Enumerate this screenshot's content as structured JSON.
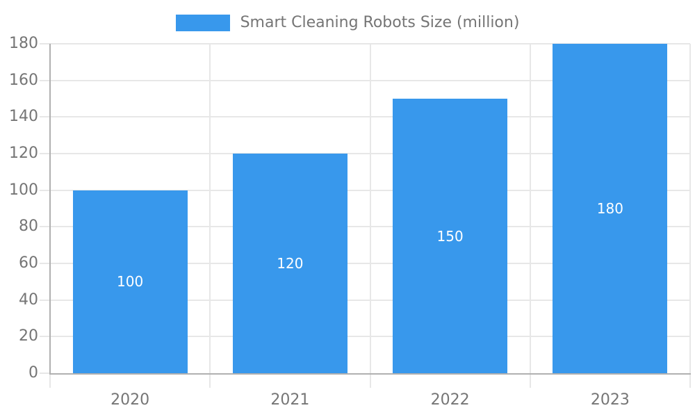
{
  "chart_data": {
    "type": "bar",
    "legend": "Smart Cleaning Robots Size (million)",
    "legend_position": "top-center",
    "categories": [
      "2020",
      "2021",
      "2022",
      "2023"
    ],
    "series": [
      {
        "name": "Smart Cleaning Robots Size (million)",
        "values": [
          100,
          120,
          150,
          180
        ]
      }
    ],
    "data_labels": [
      "100",
      "120",
      "150",
      "180"
    ],
    "xlabel": "",
    "ylabel": "",
    "ylim": [
      0,
      180
    ],
    "yticks": [
      0,
      20,
      40,
      60,
      80,
      100,
      120,
      140,
      160,
      180
    ],
    "grid": true,
    "colors": {
      "bar": "#3898ec",
      "axis": "#b0b0b0",
      "grid": "#e7e7e7",
      "tick_label": "#757575",
      "value_label": "#ffffff",
      "background": "#ffffff"
    }
  }
}
